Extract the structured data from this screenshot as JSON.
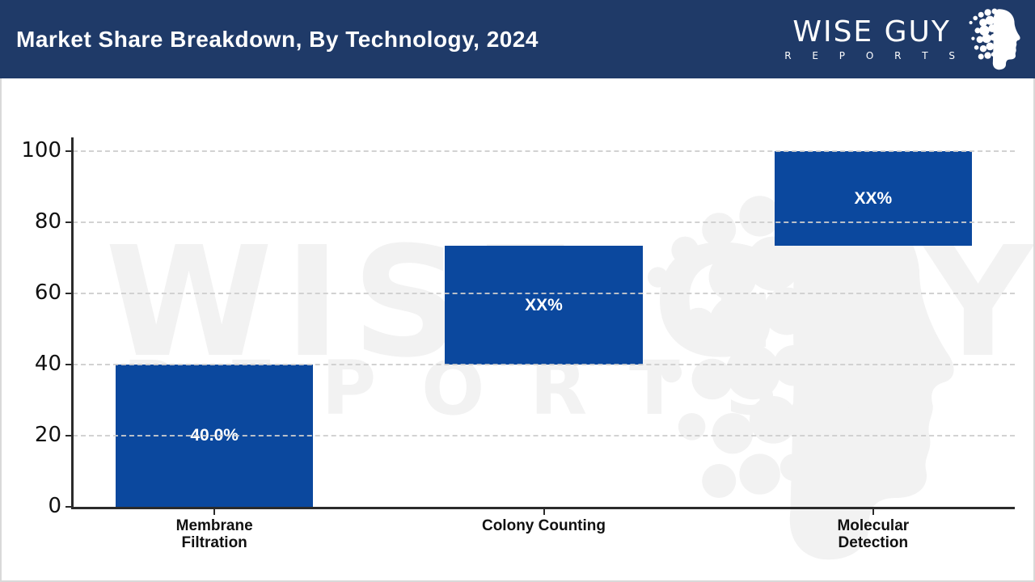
{
  "header": {
    "title": "Market Share Breakdown, By Technology, 2024",
    "logo": {
      "line1": "WISE GUY",
      "line2": "R E P O R T S"
    }
  },
  "watermark": {
    "line1": "WISE GUY",
    "line2": "REPORTS"
  },
  "chart_data": {
    "type": "bar",
    "subtype": "waterfall",
    "title": "Market Share Breakdown, By Technology, 2024",
    "xlabel": "",
    "ylabel": "",
    "ylim": [
      0,
      100
    ],
    "yticks": [
      0,
      20,
      40,
      60,
      80,
      100
    ],
    "grid": "horizontal-dashed",
    "legend": "none",
    "bar_color": "#0b489e",
    "value_label_color": "#ffffff",
    "categories": [
      "Membrane Filtration",
      "Colony Counting",
      "Molecular Detection"
    ],
    "category_label_lines": [
      [
        "Membrane",
        "Filtration"
      ],
      [
        "Colony Counting"
      ],
      [
        "Molecular",
        "Detection"
      ]
    ],
    "segments": [
      {
        "category": "Membrane Filtration",
        "start": 0,
        "end": 40,
        "label": "40.0%"
      },
      {
        "category": "Colony Counting",
        "start": 40,
        "end": 73.3,
        "label": "XX%"
      },
      {
        "category": "Molecular Detection",
        "start": 73.3,
        "end": 100,
        "label": "XX%"
      }
    ]
  },
  "colors": {
    "header_bg": "#1f3a68",
    "bar": "#0b489e",
    "axis": "#2b2b2b",
    "grid": "#cdcdcd",
    "watermark": "#f2f2f2",
    "frame_border": "#d9d9d9"
  }
}
